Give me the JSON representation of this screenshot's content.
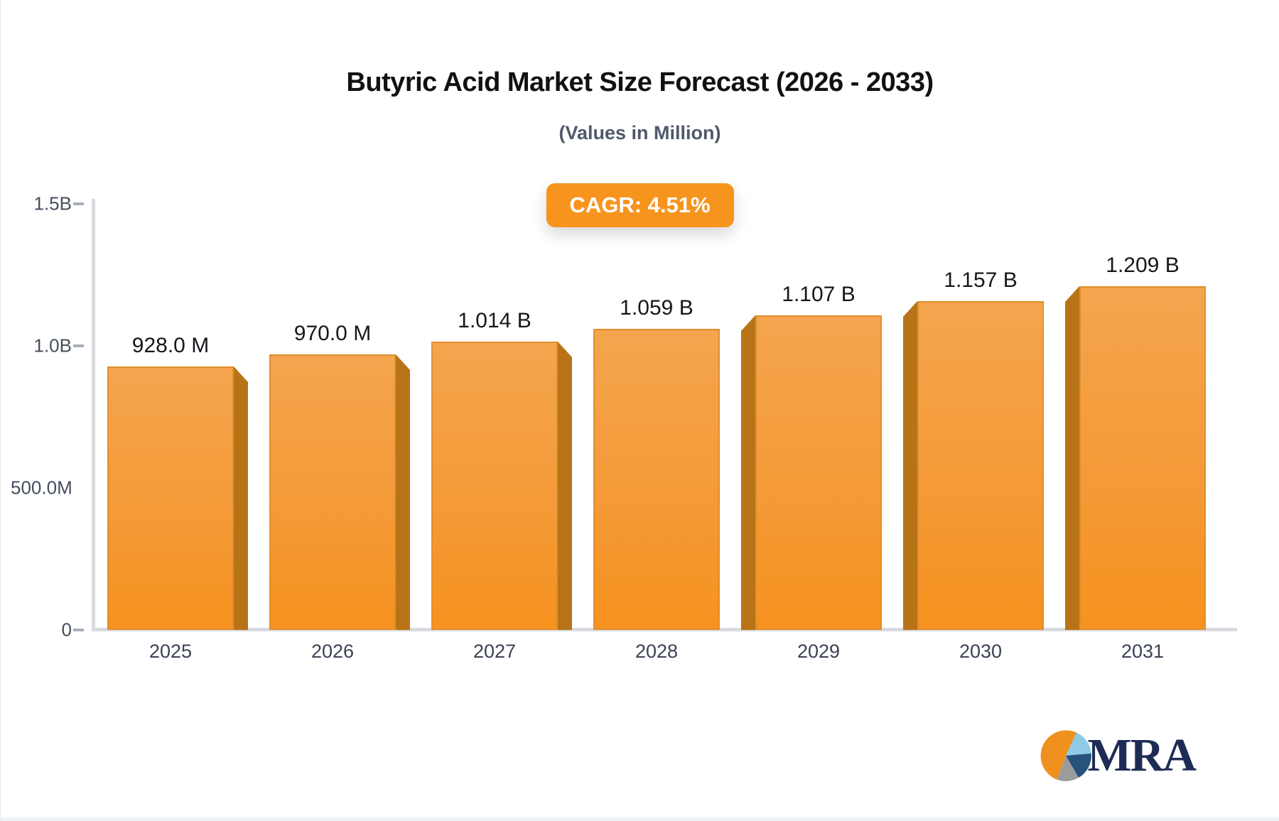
{
  "page": {
    "title": "Butyric Acid Market Size Forecast (2026 - 2033)",
    "subtitle": "(Values in Million)",
    "cagr_badge": "CAGR: 4.51%",
    "brand_text": "MRA"
  },
  "colors": {
    "bar_gradient_top": "#F4A54E",
    "bar_gradient_bottom": "#F6921F",
    "bar_side_face": "#B97317",
    "badge_background": "#F7941E",
    "axis_line": "#D9DBE1",
    "tick_dash": "#A9AFB9",
    "title_text": "#101114",
    "subtitle_text": "#50596b",
    "axis_label_text": "#454e5e",
    "year_label_text": "#3a4254",
    "value_label_text": "#15171c",
    "logo_navy": "#1d2c55",
    "logo_lightblue": "#8FCAE7",
    "logo_gray": "#9b9b9b",
    "logo_orange": "#F0901F"
  },
  "chart_data": {
    "type": "bar",
    "title": "Butyric Acid Market Size Forecast (2026 - 2033)",
    "subtitle": "(Values in Million)",
    "annotation": "CAGR: 4.51%",
    "categories": [
      "2025",
      "2026",
      "2027",
      "2028",
      "2029",
      "2030",
      "2031"
    ],
    "values": [
      928,
      970,
      1014,
      1059,
      1107,
      1157,
      1209
    ],
    "value_labels": [
      "928.0 M",
      "970.0 M",
      "1.014 B",
      "1.059 B",
      "1.107 B",
      "1.157 B",
      "1.209 B"
    ],
    "value_unit": "Million",
    "xlabel": "",
    "ylabel": "",
    "ylim": [
      0,
      1500
    ],
    "grid": false,
    "legend": false,
    "y_ticks": [
      {
        "label": "1.5B",
        "value": 1500,
        "dash": true
      },
      {
        "label": "1.0B",
        "value": 1000,
        "dash": true
      },
      {
        "label": "500.0M",
        "value": 500,
        "dash": false
      },
      {
        "label": "0",
        "value": 0,
        "dash": true
      }
    ]
  }
}
